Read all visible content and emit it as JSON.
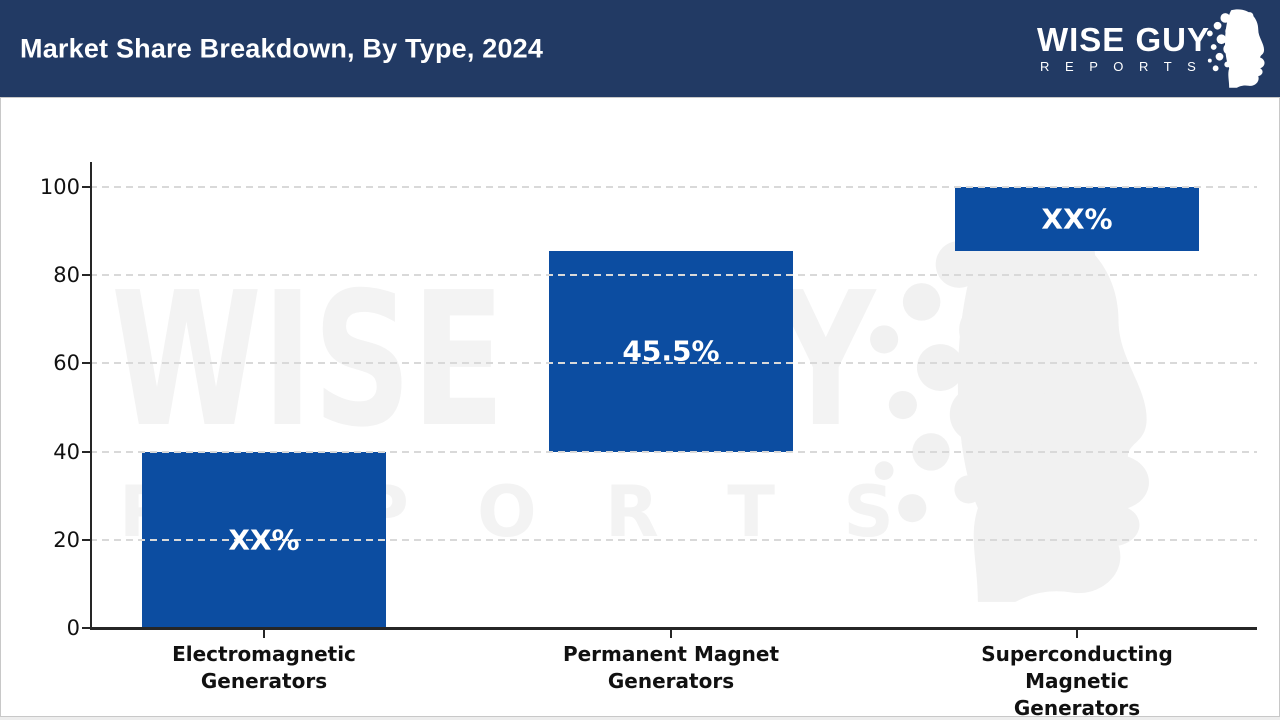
{
  "header": {
    "title": "Market Share Breakdown, By Type, 2024",
    "bg_color": "#223a64",
    "brand": {
      "name_top": "WISE GUY",
      "name_bottom": "R E P O R T S",
      "logo_icon": "dotted-head-profile"
    }
  },
  "watermark": {
    "line1": "WISE GUY",
    "line2": "R E P O R T S",
    "icon": "dotted-head-profile",
    "color": "#f3f3f3"
  },
  "chart_data": {
    "type": "bar",
    "variant": "floating-segment-waterfall",
    "title": "Market Share Breakdown, By Type, 2024",
    "categories": [
      "Electromagnetic Generators",
      "Permanent Magnet Generators",
      "Superconducting Magnetic Generators"
    ],
    "category_lines": [
      [
        "Electromagnetic",
        "Generators"
      ],
      [
        "Permanent Magnet",
        "Generators"
      ],
      [
        "Superconducting",
        "Magnetic",
        "Generators"
      ]
    ],
    "segments": [
      {
        "category": "Electromagnetic Generators",
        "start": 0,
        "end": 40,
        "label": "XX%"
      },
      {
        "category": "Permanent Magnet Generators",
        "start": 40,
        "end": 85.5,
        "label": "45.5%"
      },
      {
        "category": "Superconducting Magnetic Generators",
        "start": 85.5,
        "end": 100,
        "label": "XX%"
      }
    ],
    "y_ticks": [
      0,
      20,
      40,
      60,
      80,
      100
    ],
    "ylim": [
      0,
      100
    ],
    "xlabel": "",
    "ylabel": "",
    "grid": "horizontal-dashed",
    "legend": "none",
    "colors": {
      "bar": "#0c4da1",
      "bar_label": "#ffffff",
      "grid": "#d9d9d9",
      "axis": "#262626",
      "tick_label": "#111111"
    }
  }
}
